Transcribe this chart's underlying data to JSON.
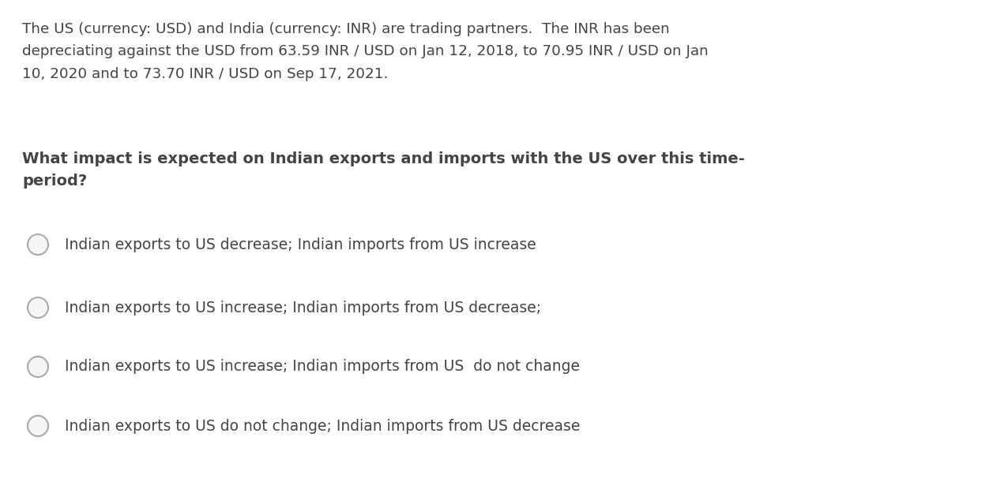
{
  "background_color": "#ffffff",
  "paragraph_text": "The US (currency: USD) and India (currency: INR) are trading partners.  The INR has been\ndepreciating against the USD from 63.59 INR / USD on Jan 12, 2018, to 70.95 INR / USD on Jan\n10, 2020 and to 73.70 INR / USD on Sep 17, 2021.",
  "question_text": "What impact is expected on Indian exports and imports with the US over this time-\nperiod?",
  "options": [
    "Indian exports to US decrease; Indian imports from US increase",
    "Indian exports to US increase; Indian imports from US decrease;",
    "Indian exports to US increase; Indian imports from US  do not change",
    "Indian exports to US do not change; Indian imports from US decrease"
  ],
  "text_color": "#444444",
  "paragraph_fontsize": 13.2,
  "question_fontsize": 14.0,
  "option_fontsize": 13.5,
  "radio_color": "#aaaaaa",
  "fig_width": 12.52,
  "fig_height": 6.25,
  "dpi": 100
}
